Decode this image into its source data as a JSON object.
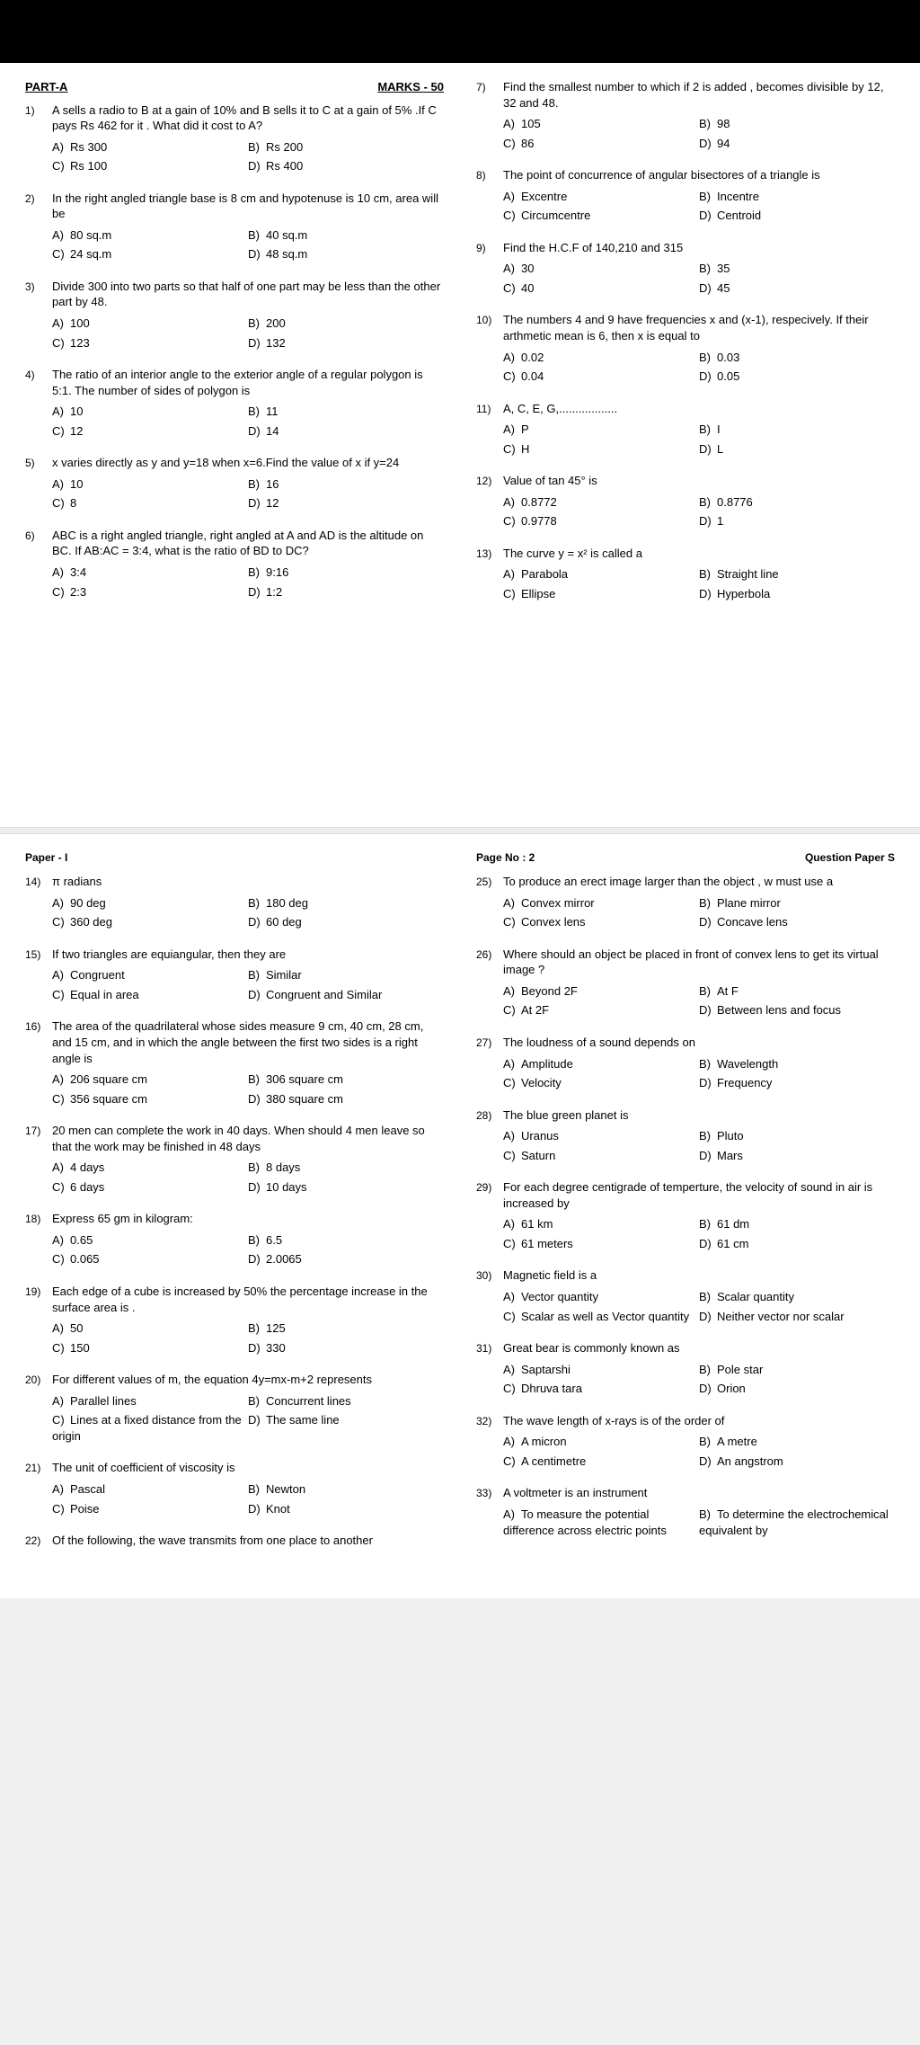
{
  "top": {
    "part": "PART-A",
    "marks": "MARKS - 50"
  },
  "page2": {
    "left": "Paper - I",
    "mid": "Page No : 2",
    "right": "Question Paper S"
  },
  "q": {
    "1": {
      "n": "1)",
      "stem": "A sells a radio to B at a gain of 10% and B sells it to C at a gain of 5% .If C pays Rs 462 for it . What did it cost to A?",
      "a": "Rs 300",
      "b": "Rs 200",
      "c": "Rs 100",
      "d": "Rs 400"
    },
    "2": {
      "n": "2)",
      "stem": "In the right angled triangle base is 8 cm and hypotenuse is 10 cm, area will be",
      "a": "80 sq.m",
      "b": "40 sq.m",
      "c": "24 sq.m",
      "d": "48 sq.m"
    },
    "3": {
      "n": "3)",
      "stem": "Divide 300 into two parts so that half of one part may be less than the other part by 48.",
      "a": "100",
      "b": "200",
      "c": "123",
      "d": "132"
    },
    "4": {
      "n": "4)",
      "stem": "The ratio of an interior angle to the exterior angle of a regular polygon is 5:1. The number of sides of polygon is",
      "a": "10",
      "b": "11",
      "c": "12",
      "d": "14"
    },
    "5": {
      "n": "5)",
      "stem": "x varies directly as y and y=18 when x=6.Find the value of x if y=24",
      "a": "10",
      "b": "16",
      "c": "8",
      "d": "12"
    },
    "6": {
      "n": "6)",
      "stem": "ABC is a right angled triangle, right angled at A and AD is the altitude on BC. If AB:AC = 3:4, what is the ratio of BD to DC?",
      "a": "3:4",
      "b": "9:16",
      "c": "2:3",
      "d": "1:2"
    },
    "7": {
      "n": "7)",
      "stem": "Find the smallest number to which if 2 is added , becomes divisible by 12, 32 and 48.",
      "a": "105",
      "b": "98",
      "c": "86",
      "d": "94"
    },
    "8": {
      "n": "8)",
      "stem": "The point of concurrence of angular bisectores of a triangle is",
      "a": "Excentre",
      "b": "Incentre",
      "c": "Circumcentre",
      "d": "Centroid"
    },
    "9": {
      "n": "9)",
      "stem": "Find the H.C.F of 140,210 and 315",
      "a": "30",
      "b": "35",
      "c": "40",
      "d": "45"
    },
    "10": {
      "n": "10)",
      "stem": "The numbers 4 and 9 have frequencies x and (x-1), respecively. If their arthmetic mean is 6, then x is equal to",
      "a": "0.02",
      "b": "0.03",
      "c": "0.04",
      "d": "0.05"
    },
    "11": {
      "n": "11)",
      "stem": "A, C, E, G,..................",
      "a": "P",
      "b": "I",
      "c": "H",
      "d": "L"
    },
    "12": {
      "n": "12)",
      "stem": "Value of tan 45° is",
      "a": "0.8772",
      "b": "0.8776",
      "c": "0.9778",
      "d": "1"
    },
    "13": {
      "n": "13)",
      "stem": "The curve y = x² is called a",
      "a": "Parabola",
      "b": "Straight line",
      "c": "Ellipse",
      "d": "Hyperbola"
    },
    "14": {
      "n": "14)",
      "stem": "π radians",
      "a": "90 deg",
      "b": "180 deg",
      "c": "360 deg",
      "d": "60 deg"
    },
    "15": {
      "n": "15)",
      "stem": "If two triangles are equiangular, then they are",
      "a": "Congruent",
      "b": "Similar",
      "c": "Equal in area",
      "d": "Congruent and Similar"
    },
    "16": {
      "n": "16)",
      "stem": "The area of the quadrilateral whose sides measure 9 cm, 40 cm, 28 cm, and 15 cm, and in which the angle between the first two sides is a right angle is",
      "a": "206 square cm",
      "b": "306 square cm",
      "c": "356 square cm",
      "d": "380 square cm"
    },
    "17": {
      "n": "17)",
      "stem": "20 men can complete the work in 40 days. When should 4 men leave so that the work may be finished in 48 days",
      "a": "4 days",
      "b": "8 days",
      "c": "6 days",
      "d": "10 days"
    },
    "18": {
      "n": "18)",
      "stem": "Express 65 gm in kilogram:",
      "a": "0.65",
      "b": "6.5",
      "c": "0.065",
      "d": "2.0065"
    },
    "19": {
      "n": "19)",
      "stem": "Each edge of a cube is increased by 50% the percentage increase in the surface area is .",
      "a": "50",
      "b": "125",
      "c": "150",
      "d": "330"
    },
    "20": {
      "n": "20)",
      "stem": "For different values of m, the equation 4y=mx-m+2 represents",
      "a": "Parallel lines",
      "b": "Concurrent lines",
      "c": "Lines at a fixed distance from the origin",
      "d": "The same line"
    },
    "21": {
      "n": "21)",
      "stem": "The unit of coefficient of viscosity is",
      "a": "Pascal",
      "b": "Newton",
      "c": "Poise",
      "d": "Knot"
    },
    "22": {
      "n": "22)",
      "stem": "Of the following, the wave transmits from one place to another",
      "a": "",
      "b": "",
      "c": "",
      "d": ""
    },
    "25": {
      "n": "25)",
      "stem": "To produce an erect image larger than the object , w must use a",
      "a": "Convex mirror",
      "b": "Plane mirror",
      "c": "Convex lens",
      "d": "Concave lens"
    },
    "26": {
      "n": "26)",
      "stem": "Where should an object be placed in front of convex lens to get its virtual image ?",
      "a": "Beyond 2F",
      "b": "At F",
      "c": "At 2F",
      "d": "Between lens and focus"
    },
    "27": {
      "n": "27)",
      "stem": "The loudness of a sound depends on",
      "a": "Amplitude",
      "b": "Wavelength",
      "c": "Velocity",
      "d": "Frequency"
    },
    "28": {
      "n": "28)",
      "stem": "The blue green planet is",
      "a": "Uranus",
      "b": "Pluto",
      "c": "Saturn",
      "d": "Mars"
    },
    "29": {
      "n": "29)",
      "stem": "For each degree centigrade of temperture, the velocity of sound in air is increased by",
      "a": "61 km",
      "b": "61 dm",
      "c": "61 meters",
      "d": "61 cm"
    },
    "30": {
      "n": "30)",
      "stem": "Magnetic field is a",
      "a": "Vector quantity",
      "b": "Scalar quantity",
      "c": "Scalar as well as Vector quantity",
      "d": "Neither vector nor scalar"
    },
    "31": {
      "n": "31)",
      "stem": "Great bear is commonly known as",
      "a": "Saptarshi",
      "b": "Pole star",
      "c": "Dhruva tara",
      "d": "Orion"
    },
    "32": {
      "n": "32)",
      "stem": "The wave length of x-rays is of the order of",
      "a": "A micron",
      "b": "A metre",
      "c": "A centimetre",
      "d": "An angstrom"
    },
    "33": {
      "n": "33)",
      "stem": "A voltmeter is an instrument",
      "a": "To measure the potential difference across electric points",
      "b": "To determine the electrochemical equivalent by",
      "c": "",
      "d": ""
    }
  }
}
